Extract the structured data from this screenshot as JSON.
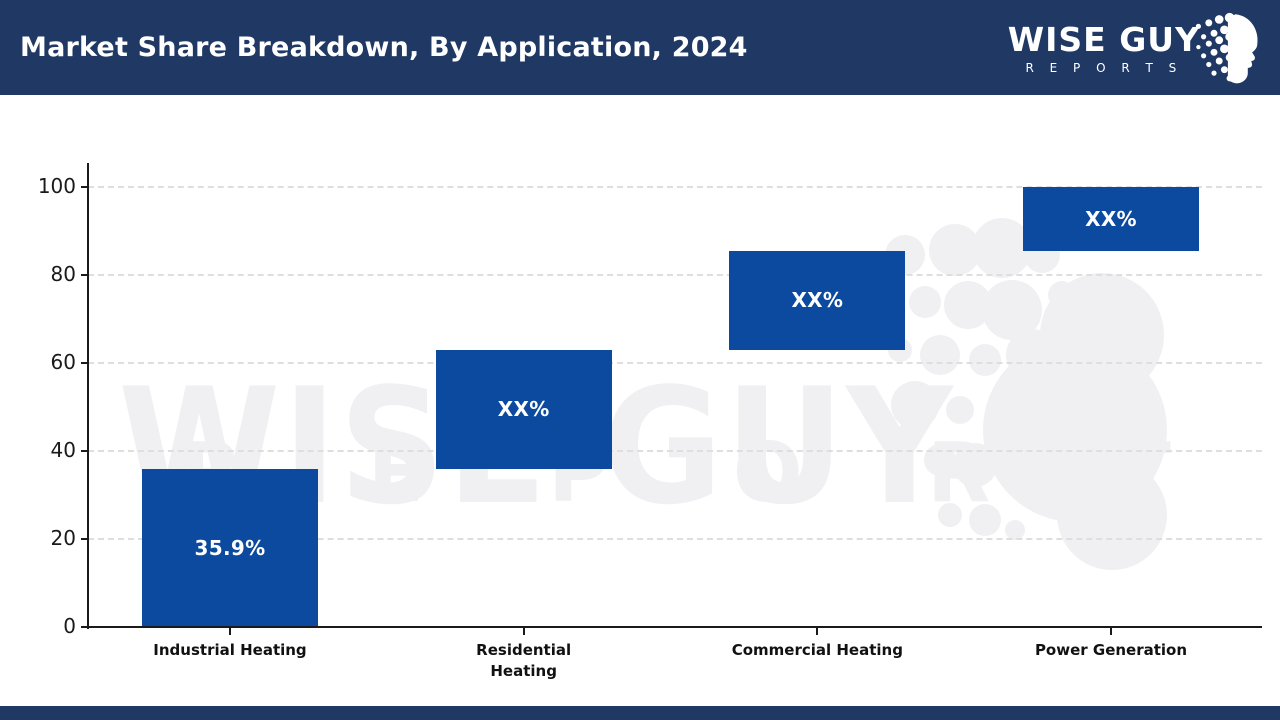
{
  "header": {
    "title": "Market Share Breakdown, By Application, 2024",
    "logo_line1": "WISE GUY",
    "logo_line2": "R E P O R T S"
  },
  "watermark": {
    "line1": "WISE GUY",
    "line2": "R E P O R T S"
  },
  "chart_data": {
    "type": "bar",
    "subtype": "stacked-waterfall",
    "title": "Market Share Breakdown, By Application, 2024",
    "categories": [
      "Industrial Heating",
      "Residential\nHeating",
      "Commercial Heating",
      "Power Generation"
    ],
    "values": [
      35.9,
      27.1,
      22.5,
      14.5
    ],
    "segments": [
      {
        "category": "Industrial Heating",
        "start": 0,
        "end": 35.9
      },
      {
        "category": "Residential Heating",
        "start": 35.9,
        "end": 63.0
      },
      {
        "category": "Commercial Heating",
        "start": 63.0,
        "end": 85.5
      },
      {
        "category": "Power Generation",
        "start": 85.5,
        "end": 100.0
      }
    ],
    "bar_labels": [
      "35.9%",
      "XX%",
      "XX%",
      "XX%"
    ],
    "xlabel": "",
    "ylabel": "",
    "ylim": [
      0,
      100
    ],
    "yticks": [
      0,
      20,
      40,
      60,
      80,
      100
    ],
    "grid": true,
    "grid_style": "dashed-horizontal",
    "legend": "none",
    "bar_color": "#0b4a9e",
    "bar_label_color": "#ffffff"
  },
  "colors": {
    "header_bg": "#1f3864",
    "axis": "#1a1a1a",
    "gridline": "#dedede",
    "watermark": "#f0f0f2"
  }
}
